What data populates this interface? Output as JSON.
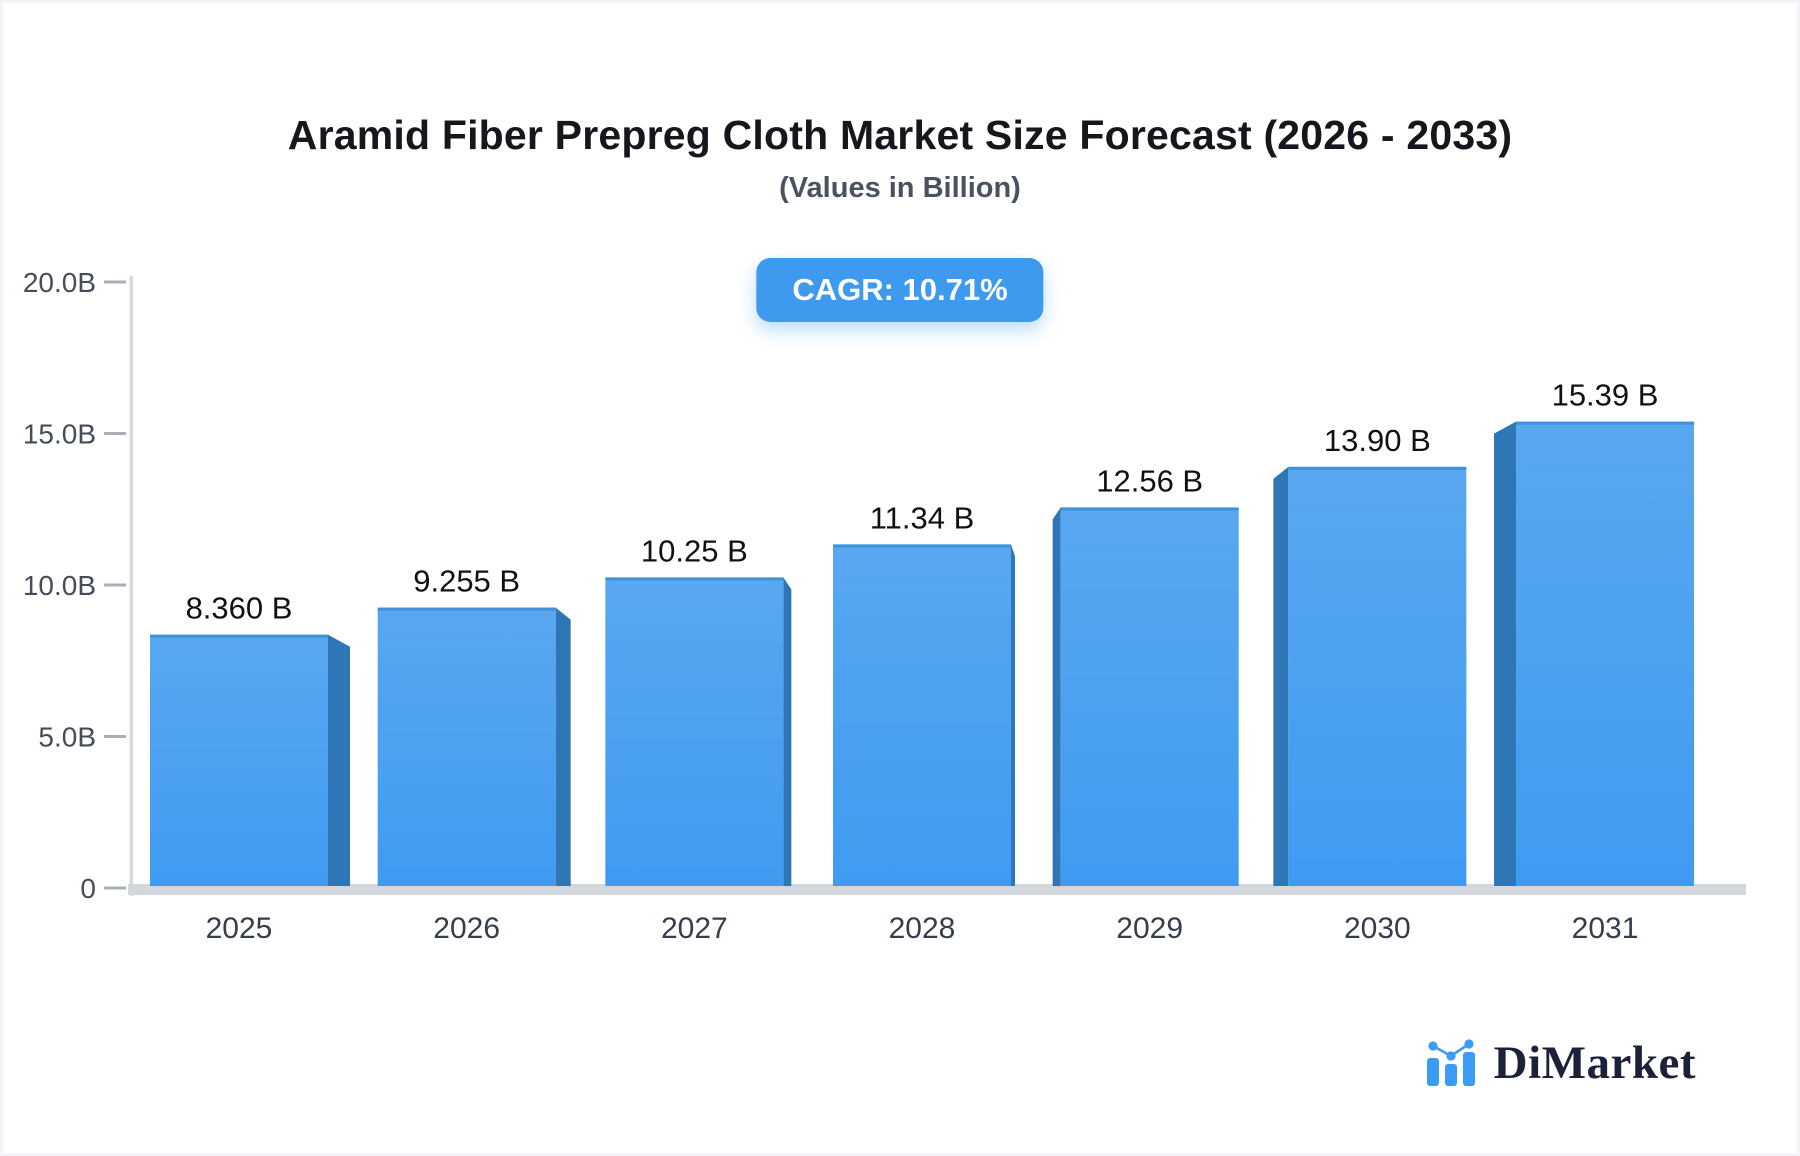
{
  "header": {
    "title": "Aramid Fiber Prepreg Cloth Market Size Forecast (2026 - 2033)",
    "subtitle": "(Values in Billion)"
  },
  "cagr_badge": {
    "label": "CAGR: 10.71%"
  },
  "chart_data": {
    "type": "bar",
    "title": "Aramid Fiber Prepreg Cloth Market Size Forecast (2026 - 2033)",
    "subtitle": "(Values in Billion)",
    "cagr_percent": "10.71%",
    "categories": [
      "2025",
      "2026",
      "2027",
      "2028",
      "2029",
      "2030",
      "2031"
    ],
    "values": [
      8.36,
      9.255,
      10.25,
      11.34,
      12.56,
      13.9,
      15.39
    ],
    "value_labels": [
      "8.360 B",
      "9.255 B",
      "10.25 B",
      "11.34 B",
      "12.56 B",
      "13.90 B",
      "15.39 B"
    ],
    "xlabel": "",
    "ylabel": "",
    "ylim": [
      0,
      20
    ],
    "yticks": [
      0,
      5,
      10,
      15,
      20
    ],
    "ytick_labels": [
      "0",
      "5.0B",
      "10.0B",
      "15.0B",
      "20.0B"
    ],
    "grid": false,
    "legend": false,
    "style_3d": true,
    "colors": {
      "bar_gradient_top": "#59a7ef",
      "bar_gradient_bottom": "#3f9bf2",
      "bar_side": "#2e76b5",
      "bar_top_edge": "#3e91db",
      "axis_line": "#d7dadf",
      "baseline": "#d3d7dc",
      "tick_dash": "#a9afb9",
      "tick_label": "#464c59",
      "category_label": "#373d4b",
      "value_label": "#0e1116"
    }
  },
  "logo": {
    "text": "DiMarket",
    "icon": "bar-chart-logo-icon",
    "icon_color": "#3b9cf5",
    "text_color": "#1a2138"
  }
}
